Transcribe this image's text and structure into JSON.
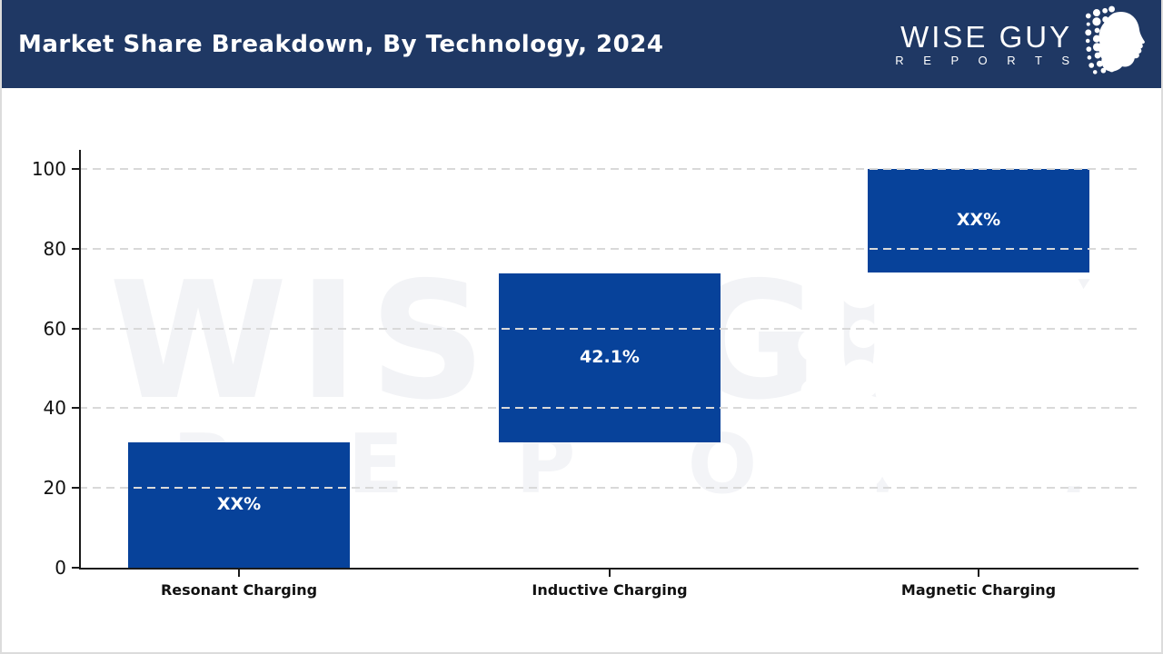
{
  "header": {
    "title": "Market Share Breakdown, By Technology, 2024",
    "bg_color": "#1f3864",
    "brand": {
      "line1": "WISE GUY",
      "line2": "R E P O R T S"
    }
  },
  "watermark": {
    "line1": "WISE GUY",
    "line2": "R E P O R T S"
  },
  "chart_data": {
    "type": "bar",
    "subtype": "floating-waterfall-segments",
    "title": "Market Share Breakdown, By Technology, 2024",
    "categories": [
      "Resonant Charging",
      "Inductive Charging",
      "Magnetic Charging"
    ],
    "series": [
      {
        "name": "Market Share (%)",
        "segments": [
          {
            "from": 0,
            "to": 31.5,
            "label": "XX%"
          },
          {
            "from": 31.5,
            "to": 73.7,
            "label": "42.1%"
          },
          {
            "from": 74,
            "to": 100,
            "label": "XX%"
          }
        ]
      }
    ],
    "ylim": [
      0,
      105
    ],
    "yticks": [
      0,
      20,
      40,
      60,
      80,
      100
    ],
    "xlabel": "",
    "ylabel": "",
    "grid": "horizontal-dashed-over-bars",
    "legend": "none",
    "bar_color": "#07429a",
    "bar_label_color": "#ffffff",
    "axis_color": "#1a1a1a",
    "grid_color": "#d9d9d9"
  }
}
